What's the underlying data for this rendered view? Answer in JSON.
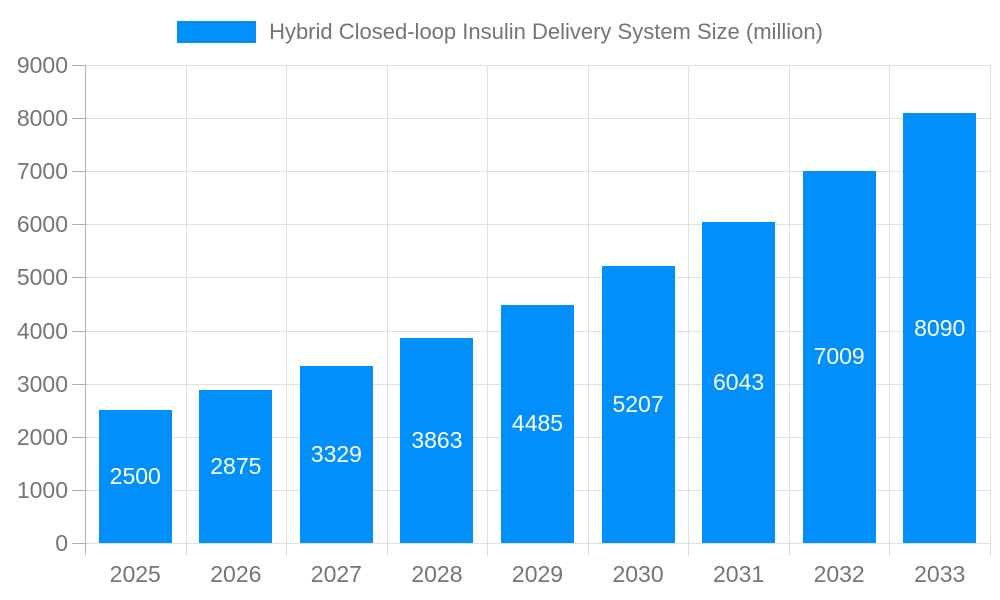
{
  "chart_data": {
    "type": "bar",
    "title": "Hybrid Closed-loop Insulin Delivery System Size (million)",
    "legend": {
      "position": "top",
      "entries": [
        {
          "label": "Hybrid Closed-loop Insulin Delivery System Size (million)",
          "swatch_color": "#008FFB"
        }
      ]
    },
    "categories": [
      "2025",
      "2026",
      "2027",
      "2028",
      "2029",
      "2030",
      "2031",
      "2032",
      "2033"
    ],
    "series": [
      {
        "name": "Hybrid Closed-loop Insulin Delivery System Size (million)",
        "values": [
          2500,
          2875,
          3329,
          3863,
          4485,
          5207,
          6043,
          7009,
          8090
        ]
      }
    ],
    "value_labels_shown": true,
    "xlabel": "",
    "ylabel": "",
    "ylim": [
      0,
      9000
    ],
    "yticks": [
      0,
      1000,
      2000,
      3000,
      4000,
      5000,
      6000,
      7000,
      8000,
      9000
    ],
    "grid": "both",
    "colors": {
      "bar": "#008FFB",
      "value_label": "#ffffff",
      "axis_text": "#757575",
      "gridline": "#e0e0e0",
      "axis_line": "#b1b1b1",
      "x_tick": "#d9d9d9",
      "background": "#ffffff"
    }
  }
}
